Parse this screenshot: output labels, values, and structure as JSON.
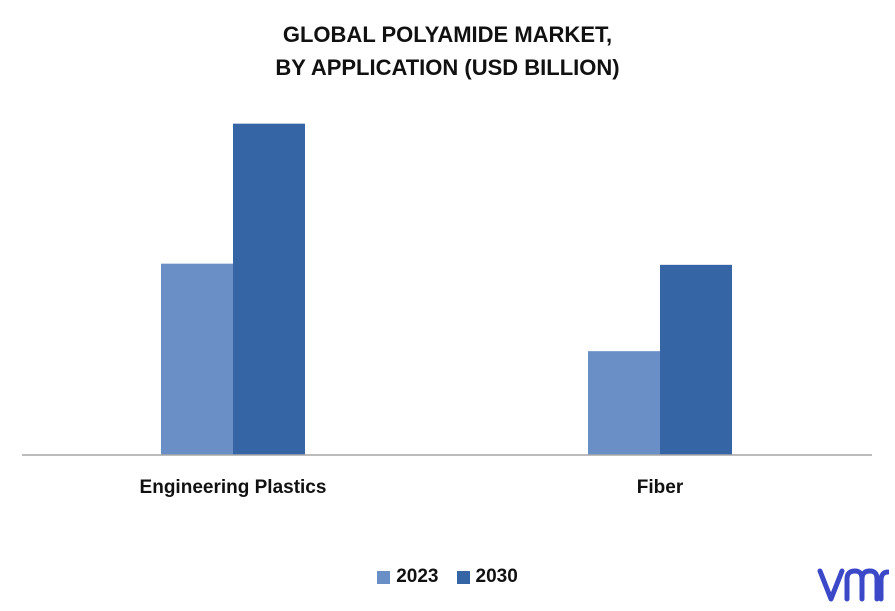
{
  "colors": {
    "series_2023": "#6a8fc7",
    "series_2030": "#3565a5",
    "axis": "#a6a6a6",
    "logo": "#3b49c8"
  },
  "logo": {
    "icon": "vmr-logo-icon",
    "text": "vmr"
  },
  "chart_data": {
    "type": "bar",
    "title": "GLOBAL POLYAMIDE MARKET,",
    "subtitle": "BY APPLICATION (USD BILLION)",
    "xlabel": "",
    "ylabel": "",
    "categories": [
      "Engineering Plastics",
      "Fiber"
    ],
    "series": [
      {
        "name": "2023",
        "values": [
          16.4,
          8.9
        ]
      },
      {
        "name": "2030",
        "values": [
          28.4,
          16.3
        ]
      }
    ],
    "ylim": [
      0,
      30
    ],
    "grid": false,
    "legend_position": "bottom-center"
  }
}
